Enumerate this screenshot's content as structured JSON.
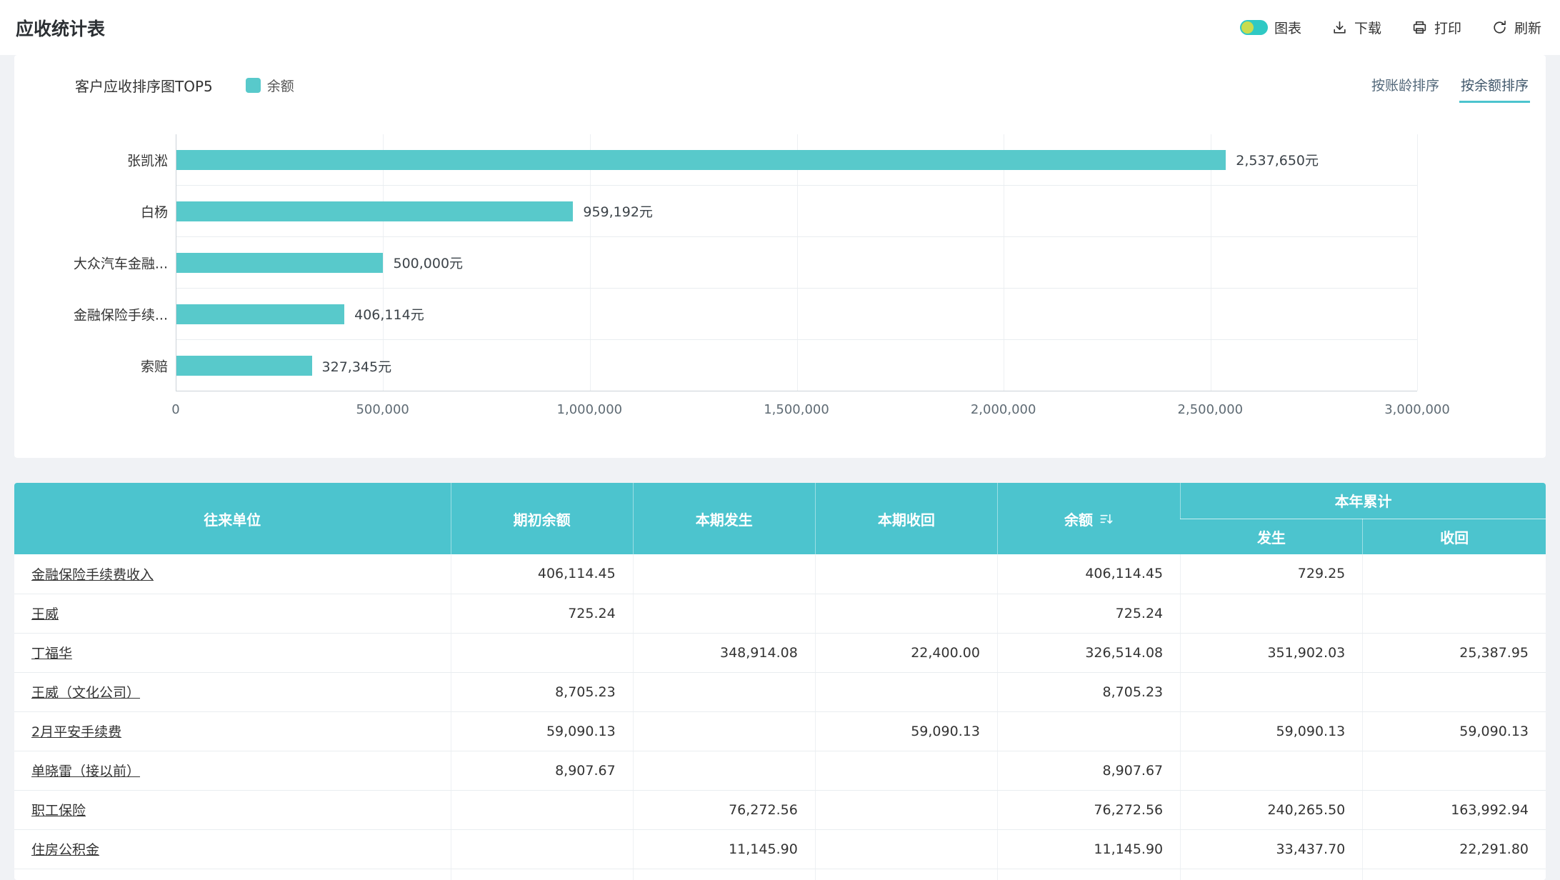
{
  "page": {
    "title": "应收统计表"
  },
  "colors": {
    "accent": "#4cc4ce",
    "bar": "#58c9cb",
    "table_header": "#4cc4ce",
    "toggle_track": "#2fc9c4",
    "toggle_knob": "#c9dc4e"
  },
  "toolbar": {
    "chart_toggle_label": "图表",
    "download_label": "下载",
    "print_label": "打印",
    "refresh_label": "刷新"
  },
  "chart": {
    "title": "客户应收排序图TOP5",
    "legend": "余额",
    "sort_by_aging": "按账龄排序",
    "sort_by_balance": "按余额排序",
    "active_sort": "按余额排序"
  },
  "chart_data": {
    "type": "bar",
    "orientation": "horizontal",
    "title": "客户应收排序图TOP5",
    "legend": [
      "余额"
    ],
    "categories": [
      "张凯淞",
      "白杨",
      "大众汽车金融...",
      "金融保险手续...",
      "索赔"
    ],
    "values": [
      2537650,
      959192,
      500000,
      406114,
      327345
    ],
    "value_labels": [
      "2,537,650元",
      "959,192元",
      "500,000元",
      "406,114元",
      "327,345元"
    ],
    "xlim": [
      0,
      3000000
    ],
    "x_ticks": [
      "0",
      "500,000",
      "1,000,000",
      "1,500,000",
      "2,000,000",
      "2,500,000",
      "3,000,000"
    ],
    "grid": true,
    "legend_position": "top-left"
  },
  "table": {
    "headers": {
      "counterpart": "往来单位",
      "opening_balance": "期初余额",
      "current_occurred": "本期发生",
      "current_recovered": "本期收回",
      "balance": "余额",
      "ytd": "本年累计",
      "ytd_occurred": "发生",
      "ytd_recovered": "收回"
    },
    "rows": [
      {
        "name": "金融保险手续费收入",
        "opening": "406,114.45",
        "occurred": "",
        "recovered": "",
        "balance": "406,114.45",
        "ytd_occurred": "729.25",
        "ytd_recovered": ""
      },
      {
        "name": "王威",
        "opening": "725.24",
        "occurred": "",
        "recovered": "",
        "balance": "725.24",
        "ytd_occurred": "",
        "ytd_recovered": ""
      },
      {
        "name": "丁福华",
        "opening": "",
        "occurred": "348,914.08",
        "recovered": "22,400.00",
        "balance": "326,514.08",
        "ytd_occurred": "351,902.03",
        "ytd_recovered": "25,387.95"
      },
      {
        "name": "王威（文化公司）",
        "opening": "8,705.23",
        "occurred": "",
        "recovered": "",
        "balance": "8,705.23",
        "ytd_occurred": "",
        "ytd_recovered": ""
      },
      {
        "name": "2月平安手续费",
        "opening": "59,090.13",
        "occurred": "",
        "recovered": "59,090.13",
        "balance": "",
        "ytd_occurred": "59,090.13",
        "ytd_recovered": "59,090.13"
      },
      {
        "name": "单晓雷（接以前）",
        "opening": "8,907.67",
        "occurred": "",
        "recovered": "",
        "balance": "8,907.67",
        "ytd_occurred": "",
        "ytd_recovered": ""
      },
      {
        "name": "职工保险",
        "opening": "",
        "occurred": "76,272.56",
        "recovered": "",
        "balance": "76,272.56",
        "ytd_occurred": "240,265.50",
        "ytd_recovered": "163,992.94"
      },
      {
        "name": "住房公积金",
        "opening": "",
        "occurred": "11,145.90",
        "recovered": "",
        "balance": "11,145.90",
        "ytd_occurred": "33,437.70",
        "ytd_recovered": "22,291.80"
      }
    ]
  }
}
